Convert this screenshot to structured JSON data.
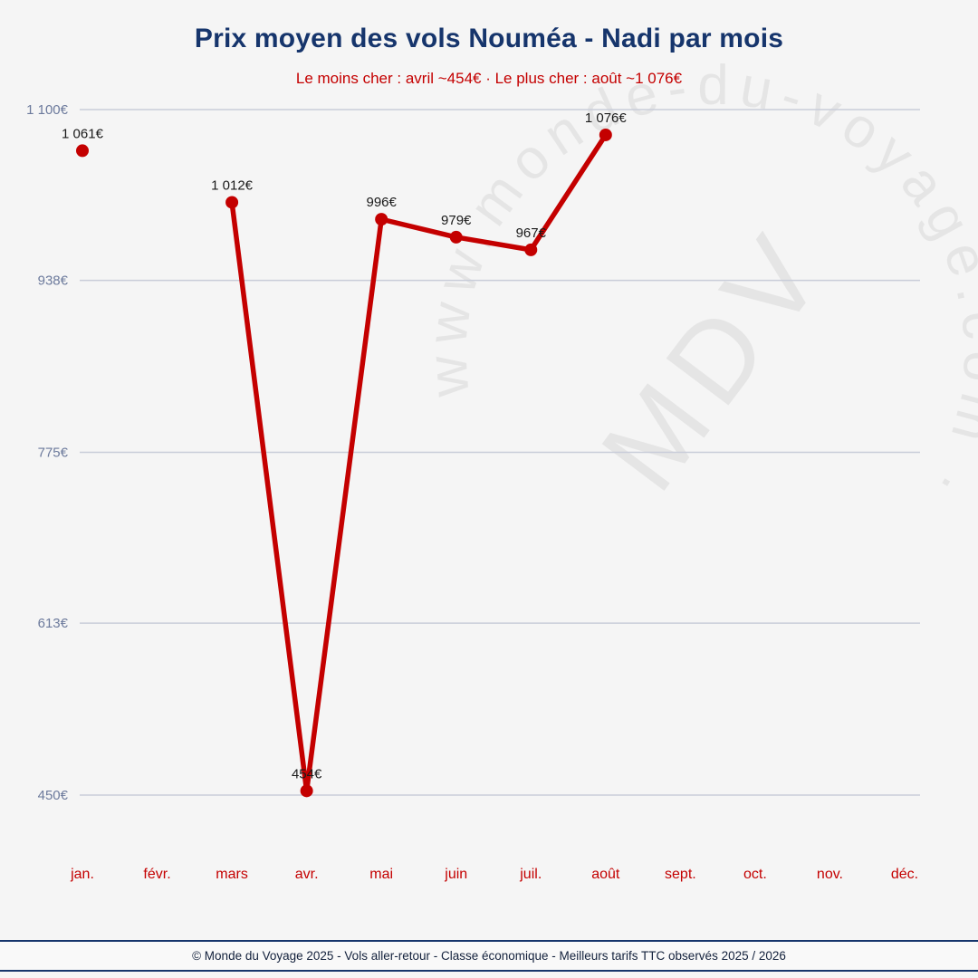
{
  "page": {
    "title": "Prix moyen des vols Nouméa - Nadi par mois",
    "subtitle": "Le moins cher : avril ~454€ · Le plus cher : août ~1 076€",
    "footer": "© Monde du Voyage 2025 - Vols aller-retour - Classe économique - Meilleurs tarifs TTC observés 2025 / 2026",
    "watermark_ring": "www.monde-du-voyage.com ·",
    "watermark_center": "MDV"
  },
  "chart_data": {
    "type": "line",
    "title": "Prix moyen des vols Nouméa - Nadi par mois",
    "categories": [
      "jan.",
      "févr.",
      "mars",
      "avr.",
      "mai",
      "juin",
      "juil.",
      "août",
      "sept.",
      "oct.",
      "nov.",
      "déc."
    ],
    "values": [
      1061,
      null,
      1012,
      454,
      996,
      979,
      967,
      1076,
      null,
      null,
      null,
      null
    ],
    "point_labels": [
      "1 061€",
      null,
      "1 012€",
      "454€",
      "996€",
      "979€",
      "967€",
      "1 076€",
      null,
      null,
      null,
      null
    ],
    "ylim": [
      450,
      1100
    ],
    "yticks": [
      1100,
      938,
      775,
      613,
      450
    ],
    "ytick_labels": [
      "1 100€",
      "938€",
      "775€",
      "613€",
      "450€"
    ],
    "grid": true,
    "legend": false,
    "min_month": "avril",
    "min_price": "454€",
    "max_month": "août",
    "max_price": "1 076€",
    "colors": {
      "line": "#c40000",
      "point": "#c40000",
      "point_label": "#1a1a1a",
      "month_label": "#c40000",
      "ytick_label": "#6c7a9c",
      "grid": "#c9cdd9",
      "title": "#16356c",
      "subtitle": "#c40000",
      "watermark": "#e3e3e3"
    }
  }
}
